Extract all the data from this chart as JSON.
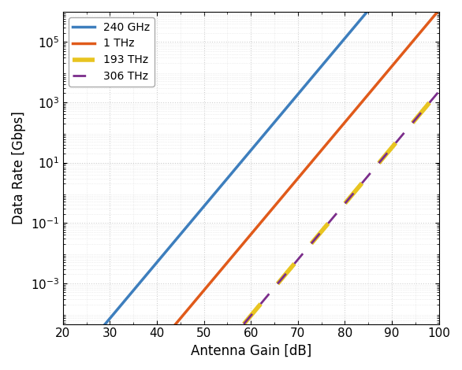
{
  "title": "",
  "xlabel": "Antenna Gain [dB]",
  "ylabel": "Data Rate [Gbps]",
  "xlim": [
    20,
    100
  ],
  "ylim_log": [
    -4.35,
    6.0
  ],
  "x_ticks": [
    20,
    30,
    40,
    50,
    60,
    70,
    80,
    90,
    100
  ],
  "lines": [
    {
      "label": "240 GHz",
      "color": "#3d7ebd",
      "linestyle": "-",
      "linewidth": 2.5,
      "x_start": 29.0,
      "x_end": 85.5,
      "slope": 0.1857
    },
    {
      "label": "1 THz",
      "color": "#e05a1a",
      "linestyle": "-",
      "linewidth": 2.5,
      "x_start": 44.0,
      "x_end": 100.5,
      "slope": 0.1857
    },
    {
      "label": "193 THz",
      "color": "#e8c420",
      "linestyle": "--",
      "linewidth": 4.0,
      "x_start": 58.5,
      "x_end": 100.5,
      "slope": 0.1857
    },
    {
      "label": "306 THz",
      "color": "#7b2d8b",
      "linestyle": "--",
      "linewidth": 2.0,
      "x_start": 58.5,
      "x_end": 100.5,
      "slope": 0.1857
    }
  ],
  "y_at_xstart_log": -4.35,
  "legend_loc": "upper left",
  "grid_major_color": "#d0d0d0",
  "grid_minor_color": "#e0e0e0",
  "background_color": "#ffffff"
}
